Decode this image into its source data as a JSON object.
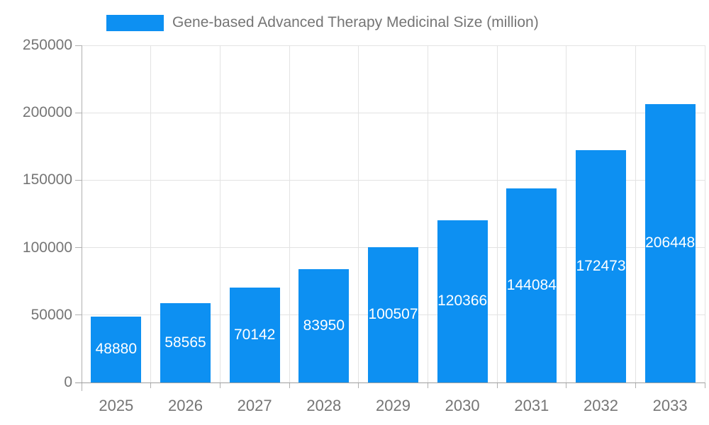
{
  "colors": {
    "bar": "#0d90f2",
    "text": "#757575",
    "grid": "#e3e3e3",
    "axis": "#b0b0b0",
    "baseline": "#9e9e9e",
    "value_label": "#ffffff",
    "background": "#ffffff"
  },
  "legend": {
    "label": "Gene-based Advanced Therapy Medicinal Size (million)"
  },
  "chart_data": {
    "type": "bar",
    "title": "Gene-based Advanced Therapy Medicinal Size (million)",
    "categories": [
      "2025",
      "2026",
      "2027",
      "2028",
      "2029",
      "2030",
      "2031",
      "2032",
      "2033"
    ],
    "values": [
      48880,
      58565,
      70142,
      83950,
      100507,
      120366,
      144084,
      172473,
      206448
    ],
    "value_labels": [
      "48880",
      "58565",
      "70142",
      "83950",
      "100507",
      "120366",
      "144084",
      "172473",
      "206448"
    ],
    "xlabel": "",
    "ylabel": "",
    "ylim": [
      0,
      250000
    ],
    "ytick_step": 50000,
    "ytick_labels": [
      "0",
      "50000",
      "100000",
      "150000",
      "200000",
      "250000"
    ],
    "grid": true,
    "legend_position": "top"
  }
}
